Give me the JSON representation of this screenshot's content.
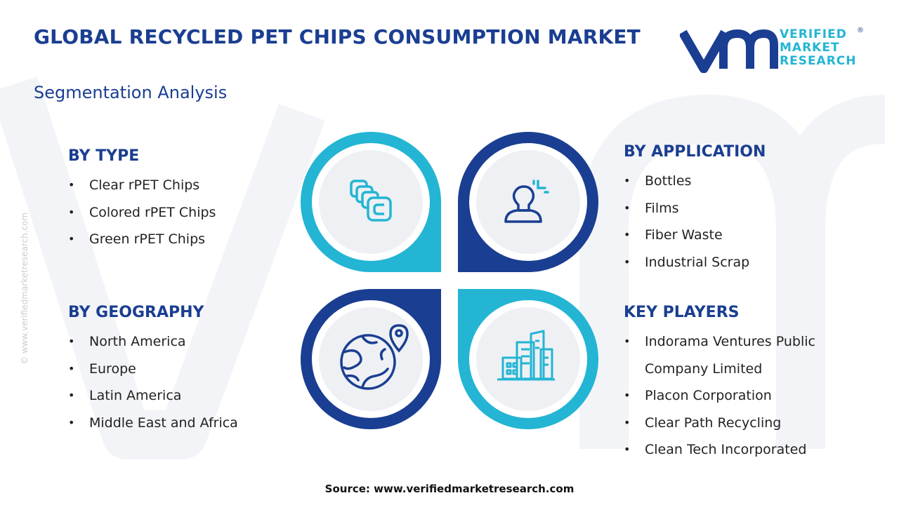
{
  "header": {
    "title": "GLOBAL RECYCLED PET CHIPS CONSUMPTION MARKET",
    "subtitle": "Segmentation Analysis"
  },
  "logo": {
    "line1": "VERIFIED",
    "line2": "MARKET",
    "line3": "RESEARCH",
    "registered": "®"
  },
  "watermark": "© www.verifiedmarketresearch.com",
  "colors": {
    "primary": "#1a3e91",
    "accent": "#23b5d3",
    "circle_fill": "#eef0f4"
  },
  "segments": {
    "type": {
      "title": "BY TYPE",
      "items": [
        "Clear rPET Chips",
        "Colored rPET Chips",
        "Green rPET Chips"
      ],
      "icon": "chips-stack-icon"
    },
    "application": {
      "title": "BY APPLICATION",
      "items": [
        "Bottles",
        "Films",
        "Fiber Waste",
        "Industrial Scrap"
      ],
      "icon": "user-idea-icon"
    },
    "geography": {
      "title": "BY GEOGRAPHY",
      "items": [
        "North America",
        "Europe",
        "Latin America",
        "Middle East and Africa"
      ],
      "icon": "globe-pin-icon"
    },
    "players": {
      "title": "KEY PLAYERS",
      "items": [
        "Indorama Ventures Public",
        "Company Limited",
        "Placon Corporation",
        "Clear Path Recycling",
        "Clean Tech Incorporated"
      ],
      "icon": "city-buildings-icon"
    }
  },
  "footer": {
    "source": "Source: www.verifiedmarketresearch.com"
  }
}
